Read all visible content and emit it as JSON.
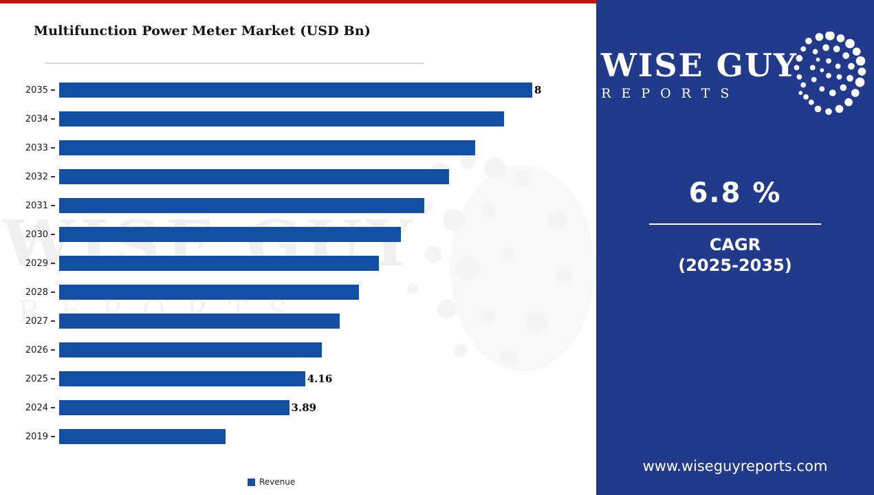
{
  "colors": {
    "bar": "#134fa3",
    "panel": "#213a8c",
    "stripe": "#cc1111"
  },
  "chart": {
    "title": "Multifunction Power Meter Market (USD Bn)",
    "legend_label": "Revenue"
  },
  "chart_data": {
    "type": "bar",
    "orientation": "horizontal",
    "title": "Multifunction Power Meter Market (USD Bn)",
    "xlabel": "",
    "ylabel": "",
    "xlim": [
      0,
      9
    ],
    "grid": false,
    "legend_position": "bottom-center",
    "categories": [
      "2035",
      "2034",
      "2033",
      "2032",
      "2031",
      "2030",
      "2029",
      "2028",
      "2027",
      "2026",
      "2025",
      "2024",
      "2019"
    ],
    "series": [
      {
        "name": "Revenue",
        "values": [
          8,
          7.52,
          7.04,
          6.59,
          6.17,
          5.78,
          5.41,
          5.07,
          4.74,
          4.44,
          4.16,
          3.89,
          2.81
        ]
      }
    ],
    "values": [
      8,
      7.52,
      7.04,
      6.59,
      6.17,
      5.78,
      5.41,
      5.07,
      4.74,
      4.44,
      4.16,
      3.89,
      2.81
    ],
    "bar_labels": [
      "8",
      "",
      "",
      "",
      "",
      "",
      "",
      "",
      "",
      "",
      "4.16",
      "3.89",
      ""
    ]
  },
  "watermark": {
    "line1": "WISE GUY",
    "line2": "REPORTS"
  },
  "panel": {
    "logo_line1": "WISE GUY",
    "logo_line2": "REPORTS",
    "cagr_value": "6.8 %",
    "cagr_label_line1": "CAGR",
    "cagr_label_line2": "(2025-2035)",
    "website": "www.wiseguyreports.com"
  }
}
